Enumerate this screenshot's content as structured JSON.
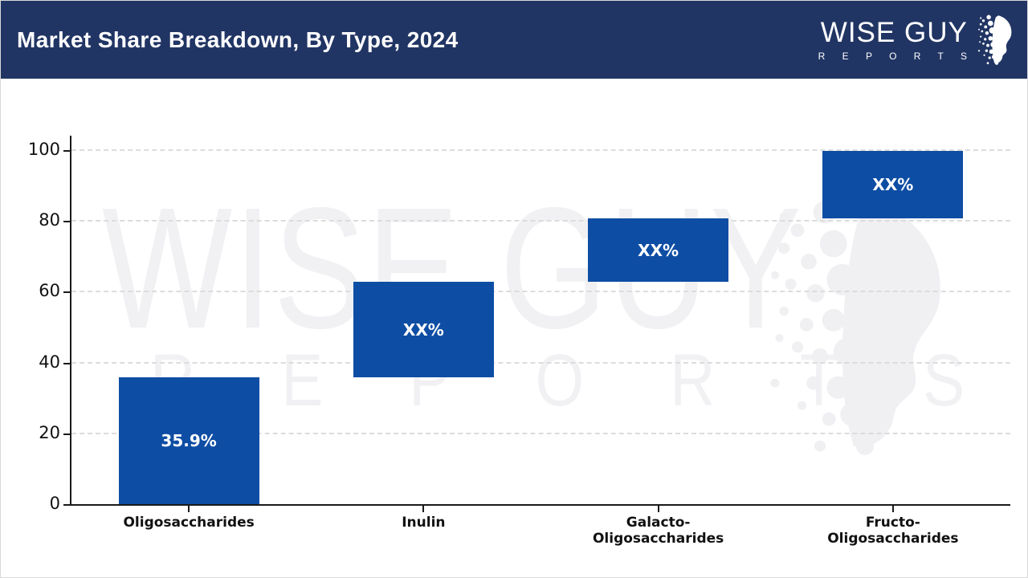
{
  "header": {
    "title": "Market Share Breakdown, By Type, 2024",
    "background_color": "#213564",
    "logo": {
      "line1": "WISE GUY",
      "line2": "R E P O R T S"
    }
  },
  "watermark": {
    "line1": "WISE GUY",
    "line2": "R E P O R T S"
  },
  "chart_data": {
    "type": "bar",
    "subtype": "waterfall",
    "title": "Market Share Breakdown, By Type, 2024",
    "categories": [
      "Oligosaccharides",
      "Inulin",
      "Galacto-\nOligosaccharides",
      "Fructo-\nOligosaccharides"
    ],
    "segments": [
      {
        "category": "Oligosaccharides",
        "start": 0,
        "end": 35.9,
        "label": "35.9%"
      },
      {
        "category": "Inulin",
        "start": 35.9,
        "end": 62.7,
        "label": "XX%"
      },
      {
        "category": "Galacto-\nOligosaccharides",
        "start": 62.7,
        "end": 80.7,
        "label": "XX%"
      },
      {
        "category": "Fructo-\nOligosaccharides",
        "start": 80.7,
        "end": 99.8,
        "label": "XX%"
      }
    ],
    "ylim": [
      0,
      105
    ],
    "yticks": [
      0,
      20,
      40,
      60,
      80,
      100
    ],
    "grid": "horizontal-dashed",
    "legend": "none",
    "bar_color": "#0e4da4",
    "bar_label_color": "#ffffff",
    "axis_color": "#1a1a1a",
    "grid_color": "#dcdcdc"
  }
}
